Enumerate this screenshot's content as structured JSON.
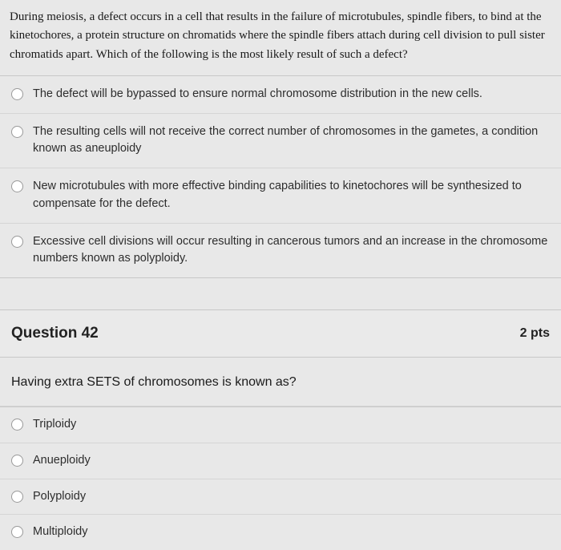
{
  "q1": {
    "prompt": "During meiosis, a defect occurs in a cell that results in the failure of microtubules, spindle fibers, to bind at the kinetochores, a protein structure on chromatids where the spindle fibers attach during cell division to pull sister chromatids apart. Which of the following is the most likely result of such a defect?",
    "options": [
      "The defect will be bypassed to ensure normal chromosome distribution in the new cells.",
      "The resulting cells will not receive the correct number of chromosomes in the gametes, a condition known as aneuploidy",
      "New microtubules with more effective binding capabilities to kinetochores will be synthesized to compensate for the defect.",
      "Excessive cell divisions will occur resulting in cancerous tumors and an increase in the chromosome numbers known as polyploidy."
    ]
  },
  "q2": {
    "title": "Question 42",
    "points": "2 pts",
    "prompt": "Having extra SETS of chromosomes is known as?",
    "options": [
      "Triploidy",
      "Anueploidy",
      "Polyploidy",
      "Multiploidy"
    ]
  },
  "colors": {
    "background": "#e8e8e8",
    "border": "#c8c8c8",
    "text": "#2d2d2d",
    "radio_border": "#9a9a9a"
  }
}
